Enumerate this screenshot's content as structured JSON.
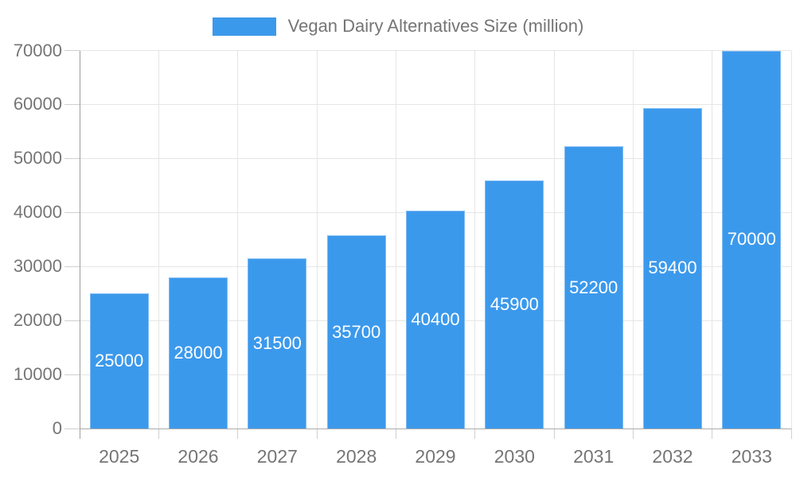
{
  "chart_data": {
    "type": "bar",
    "title": "Vegan Dairy Alternatives Size (million)",
    "categories": [
      "2025",
      "2026",
      "2027",
      "2028",
      "2029",
      "2030",
      "2031",
      "2032",
      "2033"
    ],
    "values": [
      25000,
      28000,
      31500,
      35700,
      40400,
      45900,
      52200,
      59400,
      70000
    ],
    "series": [
      {
        "name": "Vegan Dairy Alternatives Size (million)",
        "values": [
          25000,
          28000,
          31500,
          35700,
          40400,
          45900,
          52200,
          59400,
          70000
        ]
      }
    ],
    "xlabel": "",
    "ylabel": "",
    "ylim": [
      0,
      70000
    ],
    "ytick_step": 10000,
    "ytick_labels": [
      "0",
      "10000",
      "20000",
      "30000",
      "40000",
      "50000",
      "60000",
      "70000"
    ],
    "grid": true,
    "legend_position": "top",
    "bar_label_position": "center-inside",
    "colors": {
      "bar": "#3B99EC",
      "bar_border": "#8CC4F2",
      "bar_label": "#FFFFFF",
      "axis_text": "#757575",
      "gridline": "#E6E6E6",
      "axis_line": "#9E9E9E",
      "boundary_tick": "#CFCFCF"
    }
  }
}
